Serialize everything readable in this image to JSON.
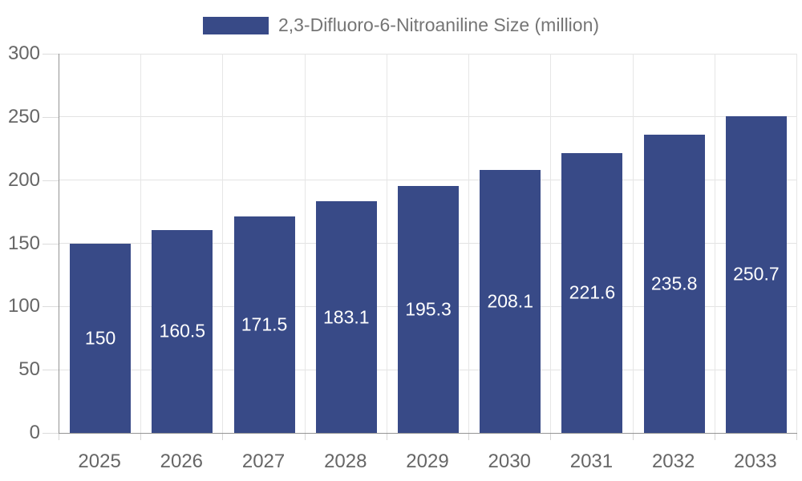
{
  "legend": {
    "label": "2,3-Difluoro-6-Nitroaniline Size (million)"
  },
  "colors": {
    "bar": "#384A87",
    "bar_label_text": "#ffffff",
    "axis_label_text": "#666666",
    "legend_text": "#757575",
    "gridline": "#e3e3e3",
    "axis_line": "#949494",
    "background": "#ffffff"
  },
  "chart_data": {
    "type": "bar",
    "title": "",
    "categories": [
      "2025",
      "2026",
      "2027",
      "2028",
      "2029",
      "2030",
      "2031",
      "2032",
      "2033"
    ],
    "series": [
      {
        "name": "2,3-Difluoro-6-Nitroaniline Size (million)",
        "values": [
          150,
          160.5,
          171.5,
          183.1,
          195.3,
          208.1,
          221.6,
          235.8,
          250.7
        ]
      }
    ],
    "value_labels": [
      "150",
      "160.5",
      "171.5",
      "183.1",
      "195.3",
      "208.1",
      "221.6",
      "235.8",
      "250.7"
    ],
    "xlabel": "",
    "ylabel": "",
    "ylim": [
      0,
      300
    ],
    "yticks": [
      0,
      50,
      100,
      150,
      200,
      250,
      300
    ],
    "grid": true,
    "legend_position": "top",
    "bar_label_position": "inside-center"
  }
}
